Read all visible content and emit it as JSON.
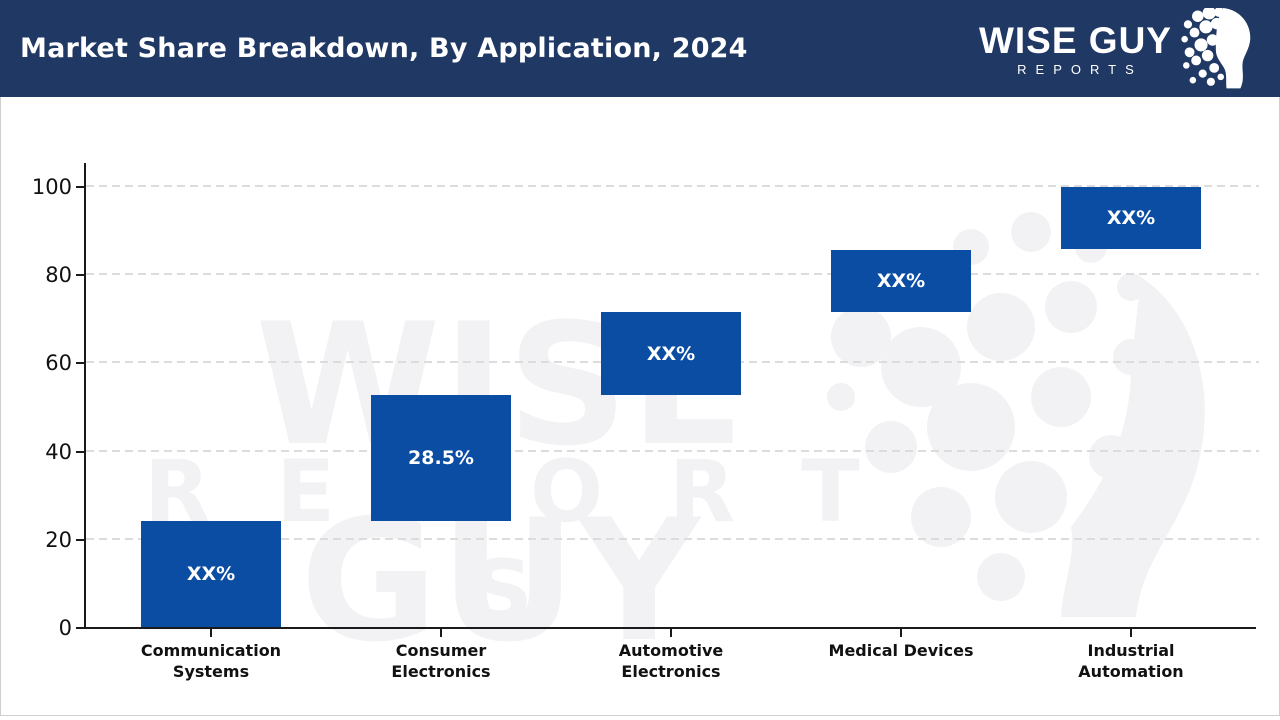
{
  "header": {
    "title": "Market Share Breakdown, By Application, 2024",
    "bg_color": "#203864",
    "logo": {
      "name_line": "WISE GUY",
      "sub_line": "REPORTS"
    }
  },
  "watermark": {
    "line1": "WISE GUY",
    "line2": "R E P O R T S"
  },
  "chart_data": {
    "type": "bar",
    "subtype": "waterfall",
    "title": "Market Share Breakdown, By Application, 2024",
    "categories": [
      "Communication Systems",
      "Consumer Electronics",
      "Automotive Electronics",
      "Medical Devices",
      "Industrial Automation"
    ],
    "category_label_lines": [
      [
        "Communication",
        "Systems"
      ],
      [
        "Consumer",
        "Electronics"
      ],
      [
        "Automotive",
        "Electronics"
      ],
      [
        "Medical Devices"
      ],
      [
        "Industrial",
        "Automation"
      ]
    ],
    "segments": [
      {
        "category": "Communication Systems",
        "start": 0,
        "end": 24,
        "label": "XX%"
      },
      {
        "category": "Consumer Electronics",
        "start": 24,
        "end": 52.5,
        "label": "28.5%",
        "value": 28.5
      },
      {
        "category": "Automotive Electronics",
        "start": 52.5,
        "end": 71.4,
        "label": "XX%"
      },
      {
        "category": "Medical Devices",
        "start": 71.5,
        "end": 85.5,
        "label": "XX%"
      },
      {
        "category": "Industrial Automation",
        "start": 85.8,
        "end": 99.7,
        "label": "XX%"
      }
    ],
    "yticks": [
      0,
      20,
      40,
      60,
      80,
      100
    ],
    "ylim": [
      0,
      105
    ],
    "grid": {
      "axis": "y",
      "style": "dashed",
      "color": "#dcdcdc"
    },
    "bar_color": "#0b4da2",
    "bar_label_color": "#ffffff",
    "axis_color": "#1a1a1a",
    "xlabel": "",
    "ylabel": "",
    "legend": null
  }
}
